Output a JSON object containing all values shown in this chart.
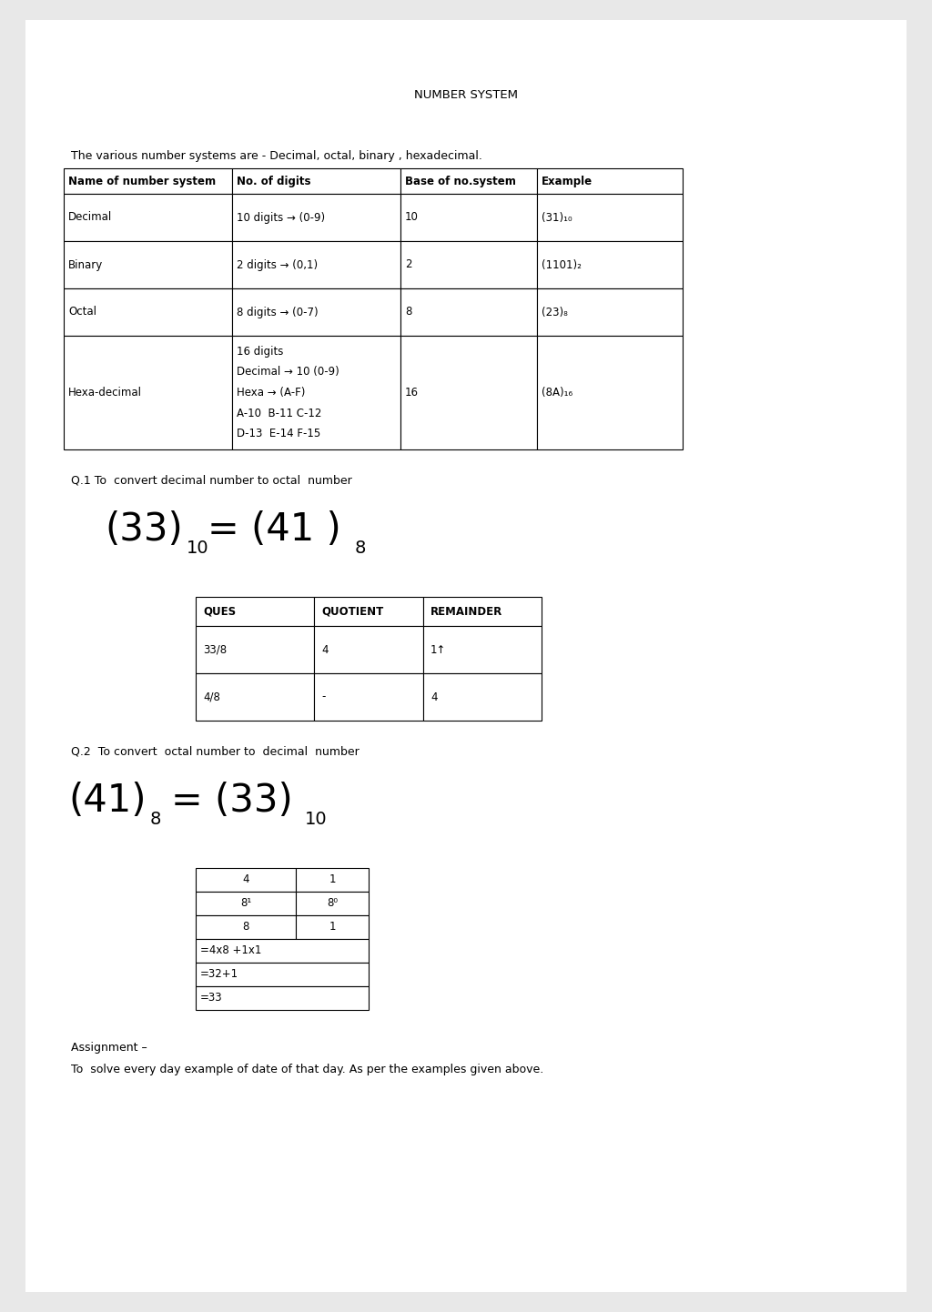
{
  "title": "NUMBER SYSTEM",
  "subtitle": "The various number systems are - Decimal, octal, binary , hexadecimal.",
  "table1_headers": [
    "Name of number system",
    "No. of digits",
    "Base of no.system",
    "Example"
  ],
  "table1_rows": [
    [
      "Decimal",
      "10 digits → (0-9)",
      "10",
      "(31)₁₀"
    ],
    [
      "Binary",
      "2 digits → (0,1)",
      "2",
      "(1101)₂"
    ],
    [
      "Octal",
      "8 digits → (0-7)",
      "8",
      "(23)₈"
    ],
    [
      "Hexa-decimal",
      "16 digits\nDecimal → 10 (0-9)\nHexa → (A-F)\nA-10  B-11 C-12\nD-13  E-14 F-15",
      "16",
      "(8A)₁₆"
    ]
  ],
  "q1_label": "Q.1 To  convert decimal number to octal  number",
  "table2_headers": [
    "QUES",
    "QUOTIENT",
    "REMAINDER"
  ],
  "table2_rows": [
    [
      "33/8",
      "4",
      "1↑"
    ],
    [
      "4/8",
      "-",
      "4"
    ]
  ],
  "q2_label": "Q.2  To convert  octal number to  decimal  number",
  "table3_data": [
    [
      "4",
      "1"
    ],
    [
      "8¹",
      "8⁰"
    ],
    [
      "8",
      "1"
    ],
    [
      "=4x8 +1x1",
      ""
    ],
    [
      "=32+1",
      ""
    ],
    [
      "=33",
      ""
    ]
  ],
  "assignment_label": "Assignment –",
  "assignment_text": "To  solve every day example of date of that day. As per the examples given above.",
  "bg_color": "#e8e8e8",
  "page_color": "#ffffff",
  "text_color": "#000000"
}
